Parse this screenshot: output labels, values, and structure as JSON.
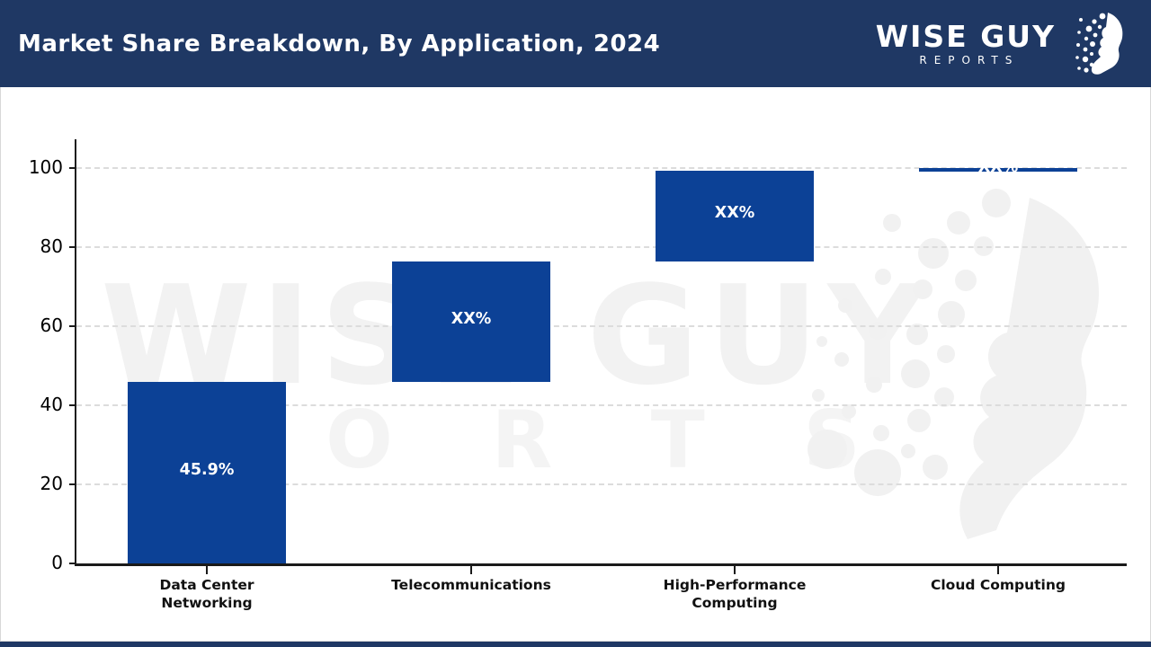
{
  "header": {
    "title": "Market Share Breakdown, By Application, 2024",
    "bg_color": "#1f3864",
    "logo": {
      "line1": "WISE GUY",
      "line2": "REPORTS"
    }
  },
  "watermark": {
    "line1": "WISE GUY",
    "line2": "PORTS"
  },
  "chart_data": {
    "type": "bar",
    "subtype": "waterfall-stacked-segments",
    "title": "Market Share Breakdown, By Application, 2024",
    "categories": [
      "Data Center Networking",
      "Telecommunications",
      "High-Performance Computing",
      "Cloud Computing"
    ],
    "category_display_lines": [
      [
        "Data Center",
        "Networking"
      ],
      [
        "Telecommunications"
      ],
      [
        "High-Performance",
        "Computing"
      ],
      [
        "Cloud Computing"
      ]
    ],
    "segments": [
      {
        "category": "Data Center Networking",
        "start": 0,
        "end": 45.9,
        "label": "45.9%"
      },
      {
        "category": "Telecommunications",
        "start": 45.9,
        "end": 76.4,
        "label": "XX%"
      },
      {
        "category": "High-Performance Computing",
        "start": 76.4,
        "end": 99.3,
        "label": "XX%"
      },
      {
        "category": "Cloud Computing",
        "start": 99.3,
        "end": 100,
        "label": "XX%"
      }
    ],
    "y_ticks": [
      0,
      20,
      40,
      60,
      80,
      100
    ],
    "ylim": [
      0,
      106
    ],
    "xlabel": "",
    "ylabel": "",
    "grid": "horizontal-dashed",
    "legend": "none",
    "bar_color": "#0c4196",
    "bar_label_color": "#ffffff",
    "axis_color": "#1a1a1a",
    "grid_color": "#dcdcdc"
  }
}
